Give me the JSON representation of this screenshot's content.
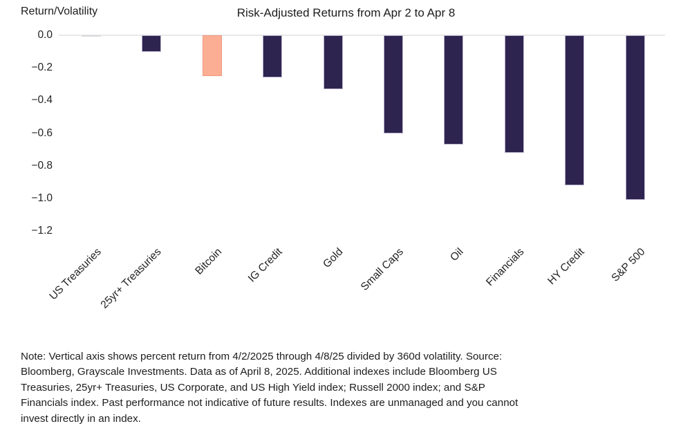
{
  "chart_data": {
    "type": "bar",
    "title": "Risk-Adjusted Returns from Apr 2 to Apr 8",
    "ylabel": "Return/Volatility",
    "xlabel": "",
    "categories": [
      "US Treasuries",
      "25yr+ Treasuries",
      "Bitcoin",
      "IG Credit",
      "Gold",
      "Small Caps",
      "Oil",
      "Financials",
      "HY Credit",
      "S&P 500"
    ],
    "values": [
      -0.01,
      -0.1,
      -0.25,
      -0.26,
      -0.33,
      -0.6,
      -0.67,
      -0.72,
      -0.92,
      -1.01
    ],
    "bar_styles": [
      "muted",
      "default",
      "highlight",
      "default",
      "default",
      "default",
      "default",
      "default",
      "default",
      "default"
    ],
    "highlight_category": "Bitcoin",
    "ylim": [
      -1.2,
      0.0
    ],
    "y_ticks": [
      0.0,
      -0.2,
      -0.4,
      -0.6,
      -0.8,
      -1.0,
      -1.2
    ],
    "y_tick_labels": [
      "0.0",
      "−0.2",
      "−0.4",
      "−0.6",
      "−0.8",
      "−1.0",
      "−1.2"
    ],
    "grid": "zero-line-only",
    "legend": "none",
    "colors": {
      "bar_default": "#2E2450",
      "bar_default_border": "#BCB4CE",
      "bar_highlight": "#FBAE93",
      "bar_highlight_border": "#F0997D",
      "bar_muted": "#E4E3E7",
      "bar_muted_border": "#D9D8DD",
      "axis_line": "#E8E8E8",
      "text": "#1C1C1C"
    }
  },
  "note": {
    "lines": [
      "Note: Vertical axis shows percent return from 4/2/2025 through 4/8/25 divided by 360d volatility. Source:",
      "Bloomberg, Grayscale Investments. Data as of April 8, 2025. Additional indexes include Bloomberg US",
      "Treasuries, 25yr+ Treasuries, US Corporate, and US High Yield index; Russell 2000 index; and S&P",
      "Financials index. Past performance not indicative of future results. Indexes are unmanaged and you cannot",
      "invest directly in an index."
    ],
    "text": "Note: Vertical axis shows percent return from 4/2/2025 through 4/8/25 divided by 360d volatility. Source: Bloomberg, Grayscale Investments. Data as of April 8, 2025. Additional indexes include Bloomberg US Treasuries, 25yr+ Treasuries, US Corporate, and US High Yield index; Russell 2000 index; and S&P Financials index. Past performance not indicative of future results. Indexes are unmanaged and you cannot invest directly in an index."
  }
}
